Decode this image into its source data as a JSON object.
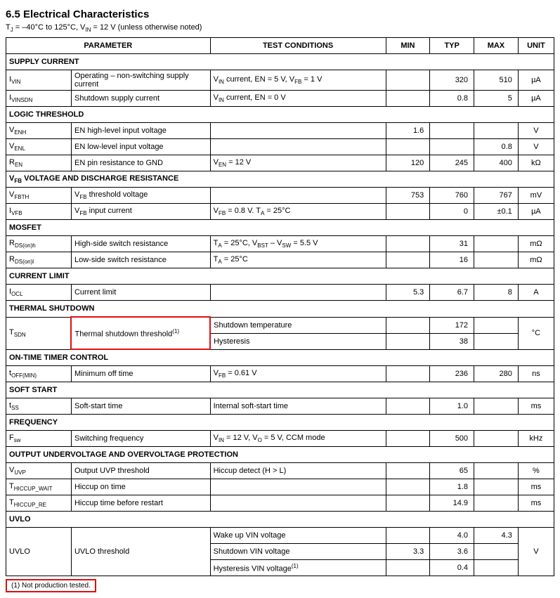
{
  "title": "6.5   Electrical Characteristics",
  "subtitle_a": "T",
  "subtitle_b": " = –40°C to 125°C, V",
  "subtitle_c": " = 12 V (unless otherwise noted)",
  "headers": {
    "param": "PARAMETER",
    "cond": "TEST CONDITIONS",
    "min": "MIN",
    "typ": "TYP",
    "max": "MAX",
    "unit": "UNIT"
  },
  "sections": {
    "supply": "SUPPLY CURRENT",
    "logic": "LOGIC THRESHOLD",
    "vfb": "V",
    "vfb2": " VOLTAGE AND DISCHARGE RESISTANCE",
    "mosfet": "MOSFET",
    "ilim": "CURRENT LIMIT",
    "tsd": "THERMAL SHUTDOWN",
    "ontime": "ON-TIME TIMER CONTROL",
    "ss": "SOFT START",
    "freq": "FREQUENCY",
    "ovuv": "OUTPUT UNDERVOLTAGE AND OVERVOLTAGE PROTECTION",
    "uvlo": "UVLO"
  },
  "rows": {
    "ivin": {
      "sym_a": "I",
      "sym_b": "VIN",
      "desc": "Operating – non-switching supply current",
      "cond_a": "V",
      "cond_b": "IN",
      "cond_c": " current, EN = 5 V, V",
      "cond_d": "FB",
      "cond_e": " = 1 V",
      "min": "",
      "typ": "320",
      "max": "510",
      "unit": "µA"
    },
    "ivinsdn": {
      "sym_a": "I",
      "sym_b": "VINSDN",
      "desc": "Shutdown supply current",
      "cond_a": "V",
      "cond_b": "IN",
      "cond_c": " current, EN = 0 V",
      "min": "",
      "typ": "0.8",
      "max": "5",
      "unit": "µA"
    },
    "venh": {
      "sym_a": "V",
      "sym_b": "ENH",
      "desc": "EN high-level input voltage",
      "cond": "",
      "min": "1.6",
      "typ": "",
      "max": "",
      "unit": "V"
    },
    "venl": {
      "sym_a": "V",
      "sym_b": "ENL",
      "desc": "EN low-level input voltage",
      "cond": "",
      "min": "",
      "typ": "",
      "max": "0.8",
      "unit": "V"
    },
    "ren": {
      "sym_a": "R",
      "sym_b": "EN",
      "desc": "EN pin resistance to GND",
      "cond_a": "V",
      "cond_b": "EN",
      "cond_c": " = 12 V",
      "min": "120",
      "typ": "245",
      "max": "400",
      "unit": "kΩ"
    },
    "vfbth": {
      "sym_a": "V",
      "sym_b": "FBTH",
      "desc_a": "V",
      "desc_b": "FB",
      "desc_c": " threshold voltage",
      "cond": "",
      "min": "753",
      "typ": "760",
      "max": "767",
      "unit": "mV"
    },
    "ivfb": {
      "sym_a": "I",
      "sym_b": "VFB",
      "desc_a": "V",
      "desc_b": "FB",
      "desc_c": " input current",
      "cond_a": "V",
      "cond_b": "FB",
      "cond_c": " = 0.8 V. T",
      "cond_d": "A",
      "cond_e": " = 25°C",
      "min": "",
      "typ": "0",
      "max": "±0.1",
      "unit": "µA"
    },
    "rdsh": {
      "sym_a": "R",
      "sym_b": "DS(on)h",
      "desc": "High-side switch resistance",
      "cond_a": "T",
      "cond_b": "A",
      "cond_c": " = 25°C, V",
      "cond_d": "BST",
      "cond_e": " – V",
      "cond_f": "SW",
      "cond_g": " = 5.5 V",
      "min": "",
      "typ": "31",
      "max": "",
      "unit": "mΩ"
    },
    "rdsl": {
      "sym_a": "R",
      "sym_b": "DS(on)l",
      "desc": "Low-side switch resistance",
      "cond_a": "T",
      "cond_b": "A",
      "cond_c": " = 25°C",
      "min": "",
      "typ": "16",
      "max": "",
      "unit": "mΩ"
    },
    "iocl": {
      "sym_a": "I",
      "sym_b": "OCL",
      "desc": "Current limit",
      "cond": "",
      "min": "5.3",
      "typ": "6.7",
      "max": "8",
      "unit": "A"
    },
    "tsdn": {
      "sym_a": "T",
      "sym_b": "SDN",
      "desc_a": "Thermal shutdown threshold",
      "desc_b": "(1)",
      "cond1": "Shutdown temperature",
      "cond2": "Hysteresis",
      "typ1": "172",
      "typ2": "38",
      "unit": "°C"
    },
    "toff": {
      "sym_a": "t",
      "sym_b": "OFF(MIN)",
      "desc": "Minimum off time",
      "cond_a": "V",
      "cond_b": "FB",
      "cond_c": " = 0.61 V",
      "min": "",
      "typ": "236",
      "max": "280",
      "unit": "ns"
    },
    "tss": {
      "sym_a": "t",
      "sym_b": "SS",
      "desc": "Soft-start time",
      "cond": "Internal soft-start time",
      "min": "",
      "typ": "1.0",
      "max": "",
      "unit": "ms"
    },
    "fsw": {
      "sym_a": "F",
      "sym_b": "sw",
      "desc": "Switching frequency",
      "cond_a": "V",
      "cond_b": "IN",
      "cond_c": " = 12 V, V",
      "cond_d": "O",
      "cond_e": " = 5 V, CCM mode",
      "min": "",
      "typ": "500",
      "max": "",
      "unit": "kHz"
    },
    "vuvp": {
      "sym_a": "V",
      "sym_b": "UVP",
      "desc": "Output UVP threshold",
      "cond": "Hiccup detect (H > L)",
      "min": "",
      "typ": "65",
      "max": "",
      "unit": "%"
    },
    "thicw": {
      "sym_a": "T",
      "sym_b": "HICCUP_WAIT",
      "desc": "Hiccup on time",
      "cond": "",
      "min": "",
      "typ": "1.8",
      "max": "",
      "unit": "ms"
    },
    "thicr": {
      "sym_a": "T",
      "sym_b": "HICCUP_RE",
      "desc": "Hiccup time before restart",
      "cond": "",
      "min": "",
      "typ": "14.9",
      "max": "",
      "unit": "ms"
    },
    "uvlo1": {
      "sym": "UVLO",
      "desc": "UVLO threshold",
      "cond": "Wake up VIN voltage",
      "min": "",
      "typ": "4.0",
      "max": "4.3",
      "unit": "V"
    },
    "uvlo2": {
      "cond": "Shutdown VIN voltage",
      "min": "3.3",
      "typ": "3.6",
      "max": ""
    },
    "uvlo3": {
      "cond_a": "Hysteresis VIN voltage",
      "cond_b": "(1)",
      "min": "",
      "typ": "0.4",
      "max": ""
    }
  },
  "footnote": "(1)   Not production tested."
}
